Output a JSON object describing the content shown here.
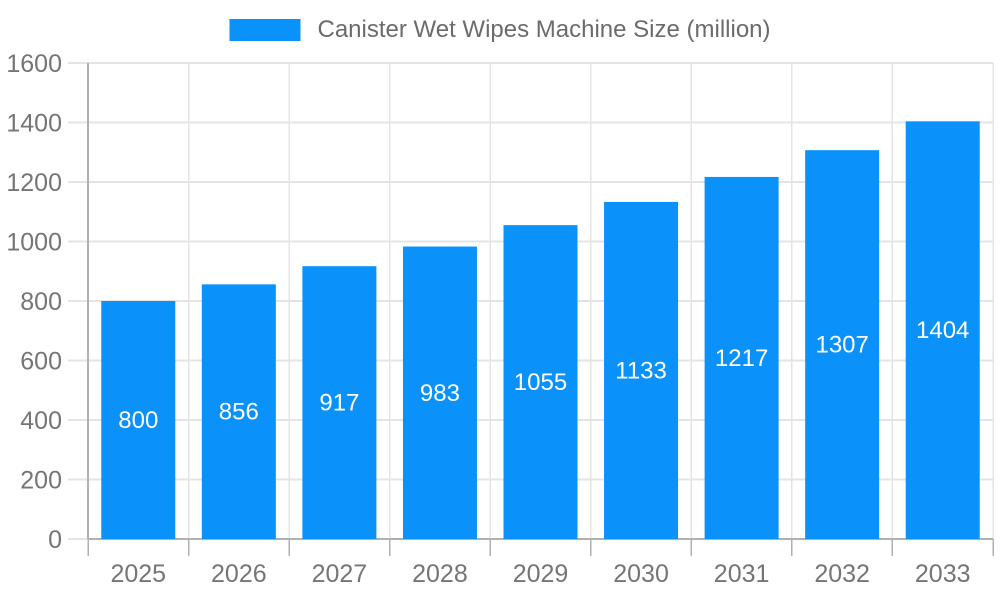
{
  "chart_data": {
    "type": "bar",
    "title": "Canister Wet Wipes Machine Size (million)",
    "categories": [
      "2025",
      "2026",
      "2027",
      "2028",
      "2029",
      "2030",
      "2031",
      "2032",
      "2033"
    ],
    "values": [
      800,
      856,
      917,
      983,
      1055,
      1133,
      1217,
      1307,
      1404
    ],
    "xlabel": "",
    "ylabel": "",
    "ylim": [
      0,
      1600
    ],
    "y_ticks": [
      0,
      200,
      400,
      600,
      800,
      1000,
      1200,
      1400,
      1600
    ],
    "grid": true,
    "legend_position": "top",
    "bar_color": "#0A91FA",
    "value_label_color": "#ffffff",
    "axis_label_color": "#757575"
  }
}
